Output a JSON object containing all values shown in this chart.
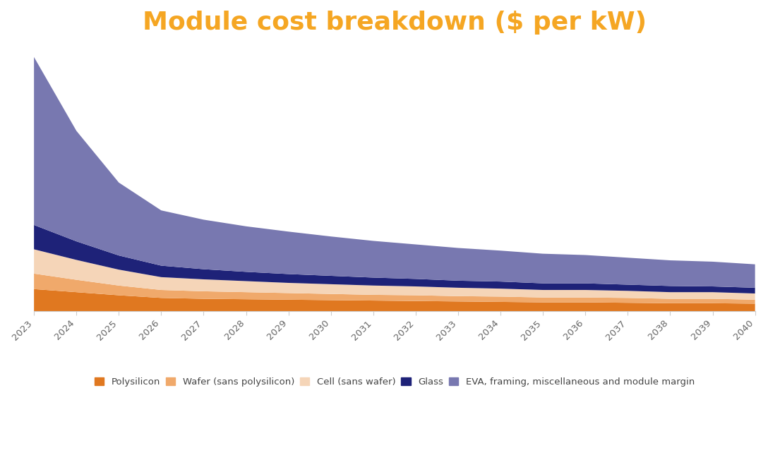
{
  "title": "Module cost breakdown ($ per kW)",
  "title_color": "#F5A623",
  "years": [
    2023,
    2024,
    2025,
    2026,
    2027,
    2028,
    2029,
    2030,
    2031,
    2032,
    2033,
    2034,
    2035,
    2036,
    2037,
    2038,
    2039,
    2040
  ],
  "series_order": [
    "Polysilicon",
    "Wafer (sans polysilicon)",
    "Cell (sans wafer)",
    "Glass",
    "EVA, framing, miscellaneous and module margin"
  ],
  "series": {
    "Polysilicon": [
      50,
      43,
      36,
      30,
      28,
      27,
      26,
      25,
      24,
      23,
      22,
      21,
      20,
      20,
      19,
      18,
      18,
      17
    ],
    "Wafer (sans polysilicon)": [
      35,
      28,
      22,
      18,
      17,
      16,
      15,
      14,
      13,
      13,
      12,
      12,
      11,
      11,
      11,
      10,
      10,
      9
    ],
    "Cell (sans wafer)": [
      55,
      45,
      36,
      29,
      27,
      25,
      23,
      22,
      21,
      20,
      19,
      18,
      17,
      17,
      16,
      15,
      15,
      14
    ],
    "Glass": [
      55,
      42,
      32,
      26,
      23,
      21,
      20,
      19,
      18,
      17,
      16,
      16,
      15,
      15,
      14,
      14,
      13,
      13
    ],
    "EVA, framing, miscellaneous and module margin": [
      380,
      250,
      165,
      125,
      112,
      103,
      96,
      89,
      83,
      78,
      74,
      70,
      67,
      64,
      61,
      58,
      56,
      53
    ]
  },
  "colors": {
    "Polysilicon": "#E07820",
    "Wafer (sans polysilicon)": "#F0A96B",
    "Cell (sans wafer)": "#F5D5B8",
    "Glass": "#1E2278",
    "EVA, framing, miscellaneous and module margin": "#7878B0"
  },
  "background_color": "#FFFFFF",
  "legend_fontsize": 9.5,
  "title_fontsize": 26
}
